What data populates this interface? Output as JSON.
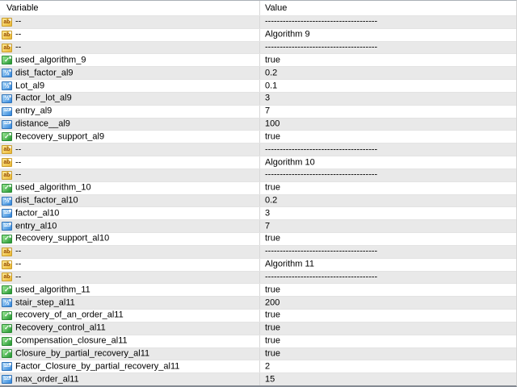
{
  "table": {
    "columns": [
      "Variable",
      "Value"
    ],
    "icons": {
      "string": {
        "name": "string-icon",
        "glyph": "ab"
      },
      "bool": {
        "name": "bool-icon",
        "glyph": "✓"
      },
      "double": {
        "name": "double-icon",
        "glyph": "½"
      },
      "integer": {
        "name": "integer-icon",
        "glyph": "123"
      }
    },
    "colors": {
      "row_default": "#ffffff",
      "row_alternate": "#e9e9e9",
      "row_border": "#e3e3e3",
      "icon_string_bg": "#edbc3d",
      "icon_number_bg": "#3d8ede",
      "icon_bool_bg": "#2f9e3a"
    },
    "rows": [
      {
        "type": "string",
        "variable": "--",
        "value": "--------------------------------------"
      },
      {
        "type": "string",
        "variable": "--",
        "value": "Algorithm 9"
      },
      {
        "type": "string",
        "variable": "--",
        "value": "--------------------------------------"
      },
      {
        "type": "bool",
        "variable": "used_algorithm_9",
        "value": "true"
      },
      {
        "type": "double",
        "variable": "dist_factor_al9",
        "value": "0.2"
      },
      {
        "type": "double",
        "variable": "Lot_al9",
        "value": "0.1"
      },
      {
        "type": "double",
        "variable": "Factor_lot_al9",
        "value": "3"
      },
      {
        "type": "integer",
        "variable": "entry_al9",
        "value": "7"
      },
      {
        "type": "integer",
        "variable": "distance__al9",
        "value": "100"
      },
      {
        "type": "bool",
        "variable": "Recovery_support_al9",
        "value": "true"
      },
      {
        "type": "string",
        "variable": "--",
        "value": "--------------------------------------"
      },
      {
        "type": "string",
        "variable": "--",
        "value": "Algorithm 10"
      },
      {
        "type": "string",
        "variable": "--",
        "value": "--------------------------------------"
      },
      {
        "type": "bool",
        "variable": "used_algorithm_10",
        "value": "true"
      },
      {
        "type": "double",
        "variable": "dist_factor_al10",
        "value": "0.2"
      },
      {
        "type": "integer",
        "variable": "factor_al10",
        "value": "3"
      },
      {
        "type": "integer",
        "variable": "entry_al10",
        "value": "7"
      },
      {
        "type": "bool",
        "variable": "Recovery_support_al10",
        "value": "true"
      },
      {
        "type": "string",
        "variable": "--",
        "value": "--------------------------------------"
      },
      {
        "type": "string",
        "variable": "--",
        "value": "Algorithm 11"
      },
      {
        "type": "string",
        "variable": "--",
        "value": "--------------------------------------"
      },
      {
        "type": "bool",
        "variable": "used_algorithm_11",
        "value": "true"
      },
      {
        "type": "double",
        "variable": "stair_step_al11",
        "value": "200"
      },
      {
        "type": "bool",
        "variable": "recovery_of_an_order_al11",
        "value": "true"
      },
      {
        "type": "bool",
        "variable": "Recovery_control_al11",
        "value": "true"
      },
      {
        "type": "bool",
        "variable": "Compensation_closure_al11",
        "value": "true"
      },
      {
        "type": "bool",
        "variable": "Closure_by_partial_recovery_al11",
        "value": "true"
      },
      {
        "type": "integer",
        "variable": "Factor_Closure_by_partial_recovery_al11",
        "value": "2"
      },
      {
        "type": "integer",
        "variable": "max_order_al11",
        "value": "15"
      }
    ]
  }
}
